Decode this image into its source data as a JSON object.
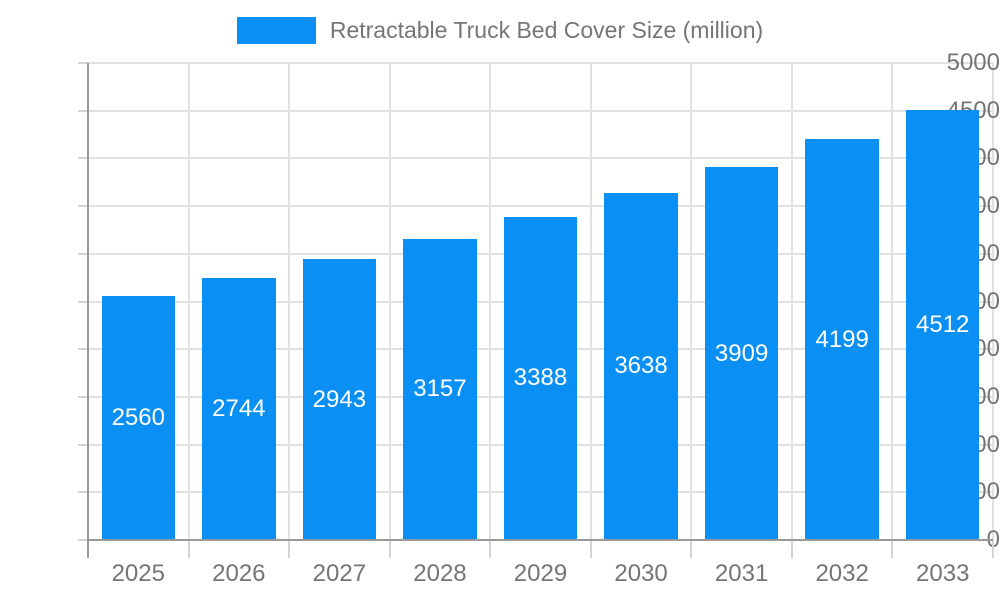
{
  "legend": {
    "label": "Retractable Truck Bed Cover Size (million)"
  },
  "chart_data": {
    "type": "bar",
    "title": "Retractable Truck Bed Cover Size (million)",
    "legend_position": "top-center",
    "grid": true,
    "categories": [
      "2025",
      "2026",
      "2027",
      "2028",
      "2029",
      "2030",
      "2031",
      "2032",
      "2033"
    ],
    "values": [
      2560,
      2744,
      2943,
      3157,
      3388,
      3638,
      3909,
      4199,
      4512
    ],
    "series_name": "Retractable Truck Bed Cover Size (million)",
    "xlabel": "",
    "ylabel": "",
    "ylim": [
      0,
      5000
    ],
    "ytick_step": 500,
    "bar_labels_inside": true,
    "colors": {
      "bar": "#0A90F5",
      "grid": "#E1E1E1",
      "tick": "#D4D4D4",
      "axis": "#999999",
      "text": "#757575",
      "bar_label": "#FFFFFF",
      "background": "#FFFFFF"
    }
  }
}
